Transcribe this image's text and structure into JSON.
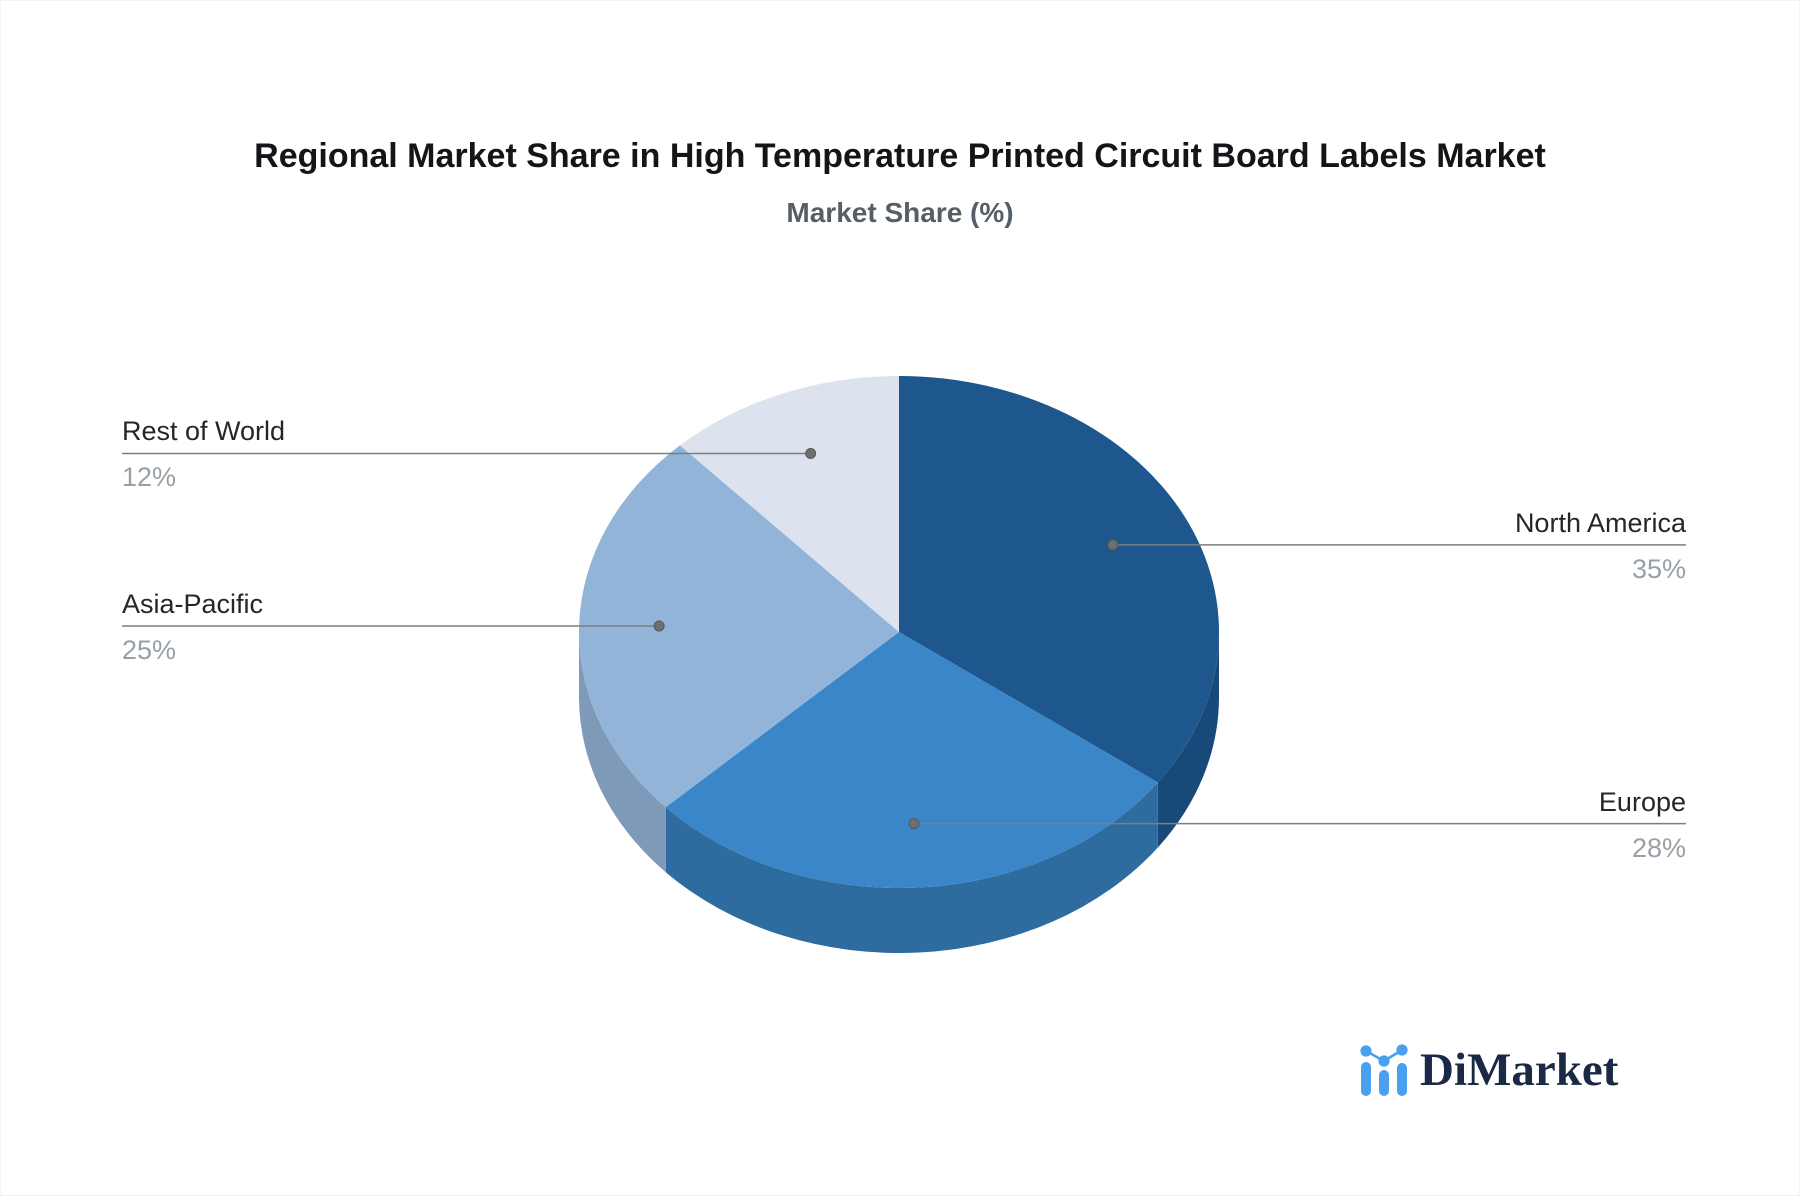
{
  "title": "Regional Market Share in High Temperature Printed Circuit Board Labels Market",
  "subtitle": "Market Share (%)",
  "chart_data": {
    "type": "pie",
    "style": "3d",
    "title": "Regional Market Share in High Temperature Printed Circuit Board Labels Market",
    "subtitle": "Market Share (%)",
    "unit": "%",
    "direction": "clockwise",
    "start_angle_deg": 0,
    "legend_position": "none",
    "label_style": "callout-leader-lines",
    "slices": [
      {
        "label": "North America",
        "value": 35,
        "display": "35%",
        "color": "#1d578e",
        "side_color": "#174a78"
      },
      {
        "label": "Europe",
        "value": 28,
        "display": "28%",
        "color": "#3a86c8",
        "side_color": "#2e6b9e"
      },
      {
        "label": "Asia-Pacific",
        "value": 25,
        "display": "25%",
        "color": "#92b4d9",
        "side_color": "#7e9ab8"
      },
      {
        "label": "Rest of World",
        "value": 12,
        "display": "12%",
        "color": "#dde3ee",
        "side_color": "#b9c5d6"
      }
    ]
  },
  "callout_style": {
    "line_color": "#7f7f7f",
    "dot_color": "#6f6f6f",
    "label_text_color": "#23272b",
    "value_text_color": "#98a0a7"
  },
  "brand": {
    "name": "DiMarket",
    "icon": "bar-chart-trend-logo-icon",
    "icon_color": "#4aa0ee",
    "text_color": "#1b2946"
  }
}
